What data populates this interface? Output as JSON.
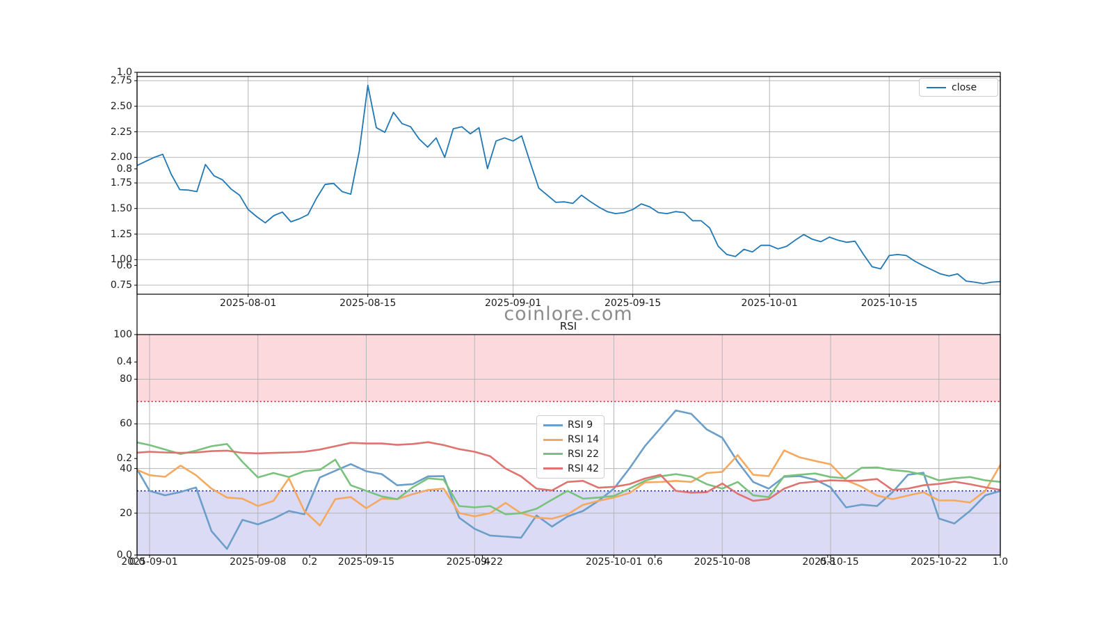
{
  "watermark": "coinlore.com",
  "colors": {
    "close": "#1f77b4",
    "rsi9": "#6b9ec9",
    "rsi14": "#f5a95f",
    "rsi22": "#79c27d",
    "rsi42": "#de7370",
    "grid": "#b5b5b5",
    "spine": "#000000",
    "overbought_band": "#fcd9dc",
    "oversold_band": "#dcdbf5",
    "overbought_line": "#cc1133",
    "oversold_line": "#0000b0",
    "watermark": "#8c8c8c",
    "text": "#1a1a1a"
  },
  "price_chart": {
    "legend_label": "close"
  },
  "rsi_chart": {
    "title": "RSI",
    "legend": [
      "RSI 9",
      "RSI 14",
      "RSI 22",
      "RSI 42"
    ],
    "overbought_level": 70,
    "oversold_level": 30
  },
  "hidden_axis": {
    "x_tick_labels": [
      "0.0",
      "0.2",
      "0.4",
      "0.6",
      "0.8",
      "1.0"
    ],
    "y_tick_labels": [
      "1.0",
      "0.8",
      "0.6",
      "0.4",
      "0.2",
      "0.0"
    ]
  },
  "chart_data": [
    {
      "type": "line",
      "title": "",
      "xlabel": "",
      "ylabel": "",
      "legend": [
        "close"
      ],
      "legend_position": "upper right",
      "grid": true,
      "x_start_date": "2025-07-19",
      "x_tick_labels": [
        "2025-08-01",
        "2025-08-15",
        "2025-09-01",
        "2025-09-15",
        "2025-10-01",
        "2025-10-15"
      ],
      "x_tick_day_index": [
        13,
        27,
        44,
        58,
        74,
        88
      ],
      "y_tick_labels": [
        "0.75",
        "1.00",
        "1.25",
        "1.50",
        "1.75",
        "2.00",
        "2.25",
        "2.50",
        "2.75"
      ],
      "y_ticks": [
        0.75,
        1.0,
        1.25,
        1.5,
        1.75,
        2.0,
        2.25,
        2.5,
        2.75
      ],
      "ylim": [
        0.66,
        2.79
      ],
      "series": [
        {
          "name": "close",
          "values": [
            1.92,
            1.96,
            2.0,
            2.03,
            1.835,
            1.685,
            1.68,
            1.665,
            1.93,
            1.82,
            1.78,
            1.69,
            1.63,
            1.49,
            1.42,
            1.36,
            1.43,
            1.465,
            1.37,
            1.4,
            1.44,
            1.6,
            1.735,
            1.745,
            1.665,
            1.64,
            2.06,
            2.705,
            2.29,
            2.245,
            2.44,
            2.33,
            2.3,
            2.18,
            2.1,
            2.19,
            2.0,
            2.28,
            2.3,
            2.23,
            2.29,
            1.89,
            2.16,
            2.19,
            2.16,
            2.21,
            1.95,
            1.7,
            1.63,
            1.56,
            1.565,
            1.55,
            1.63,
            1.57,
            1.515,
            1.47,
            1.45,
            1.46,
            1.49,
            1.545,
            1.515,
            1.46,
            1.45,
            1.47,
            1.46,
            1.38,
            1.38,
            1.31,
            1.13,
            1.05,
            1.03,
            1.1,
            1.075,
            1.14,
            1.14,
            1.105,
            1.13,
            1.19,
            1.245,
            1.2,
            1.175,
            1.22,
            1.19,
            1.17,
            1.18,
            1.05,
            0.93,
            0.91,
            1.04,
            1.05,
            1.04,
            0.985,
            0.94,
            0.9,
            0.86,
            0.84,
            0.86,
            0.79,
            0.78,
            0.765,
            0.78,
            0.785
          ]
        }
      ]
    },
    {
      "type": "line",
      "title": "RSI",
      "xlabel": "",
      "ylabel": "",
      "legend": [
        "RSI 9",
        "RSI 14",
        "RSI 22",
        "RSI 42"
      ],
      "legend_position": "upper center",
      "grid": true,
      "x_start_date": "2025-08-31",
      "x_tick_labels": [
        "2025-09-01",
        "2025-09-08",
        "2025-09-15",
        "2025-09-22",
        "2025-10-01",
        "2025-10-08",
        "2025-10-15",
        "2025-10-22"
      ],
      "x_tick_day_index": [
        1,
        8,
        15,
        22,
        31,
        38,
        45,
        52
      ],
      "y_tick_labels": [
        "20",
        "40",
        "60",
        "80",
        "100"
      ],
      "y_ticks": [
        20,
        40,
        60,
        80,
        100
      ],
      "ylim": [
        1.3,
        100
      ],
      "overbought_band": [
        70,
        100
      ],
      "oversold_band": [
        0,
        30
      ],
      "series": [
        {
          "name": "RSI 9",
          "values": [
            42,
            30,
            28,
            29.5,
            31.5,
            12,
            4,
            17,
            15,
            17.5,
            21,
            19.5,
            36,
            39,
            42,
            38.8,
            37.5,
            32.5,
            33,
            36.5,
            36.6,
            18,
            13,
            10,
            9.5,
            9,
            19,
            14,
            18.5,
            21,
            25.5,
            31,
            40,
            50,
            58,
            66,
            64.5,
            57.5,
            53.8,
            43,
            34,
            31,
            36.3,
            36.6,
            35,
            31.6,
            22.6,
            23.8,
            23.2,
            29.4,
            37.2,
            38.1,
            17.6,
            15.4,
            21,
            28,
            30
          ]
        },
        {
          "name": "RSI 14",
          "values": [
            40,
            37,
            36.3,
            41.3,
            37,
            31,
            27,
            26.5,
            23.2,
            25.5,
            35.6,
            21,
            14.5,
            26.3,
            27.2,
            22.2,
            26.5,
            26.3,
            28.5,
            30.4,
            31,
            20.1,
            18.6,
            20,
            24.6,
            20,
            18,
            17.5,
            19.5,
            23.7,
            25.5,
            27,
            29,
            33.8,
            34,
            34.5,
            34,
            38,
            38.5,
            46,
            37.2,
            36.6,
            48.1,
            45,
            43.4,
            41.9,
            34.7,
            31.9,
            27.9,
            26.3,
            27.9,
            29.4,
            25.7,
            25.7,
            24.8,
            30,
            42
          ]
        },
        {
          "name": "RSI 22",
          "values": [
            52,
            50.5,
            48.5,
            46.5,
            48,
            50,
            51,
            43,
            36,
            38,
            36.2,
            38.8,
            39.4,
            44,
            32.5,
            30,
            27.5,
            26.3,
            31.6,
            35.6,
            35,
            23.2,
            22.6,
            23.2,
            19.5,
            20,
            22,
            26,
            30,
            26.5,
            27,
            27.7,
            31,
            34.5,
            36.5,
            37.5,
            36.4,
            33,
            31,
            34,
            28,
            27.2,
            36.6,
            37.2,
            37.8,
            36.2,
            35.6,
            40.3,
            40.5,
            39.3,
            38.7,
            37.2,
            34.7,
            35.6,
            36.2,
            34.7,
            34
          ]
        },
        {
          "name": "RSI 42",
          "values": [
            47,
            47.5,
            47.2,
            47,
            47.2,
            47.8,
            48,
            47,
            46.8,
            47,
            47.2,
            47.5,
            48.5,
            50,
            51.5,
            51.2,
            51.2,
            50.6,
            51,
            51.8,
            50.5,
            48.7,
            47.5,
            45.5,
            40,
            36.5,
            31,
            30.2,
            34,
            34.5,
            31.4,
            31.8,
            33,
            35.5,
            37.2,
            30,
            29.2,
            29.4,
            33.3,
            28.7,
            25.5,
            26.3,
            31,
            33.5,
            34.1,
            34.7,
            34.5,
            34.6,
            35.3,
            30.4,
            31,
            32.5,
            33.1,
            34.1,
            33,
            31.6,
            30.4
          ]
        }
      ]
    }
  ]
}
